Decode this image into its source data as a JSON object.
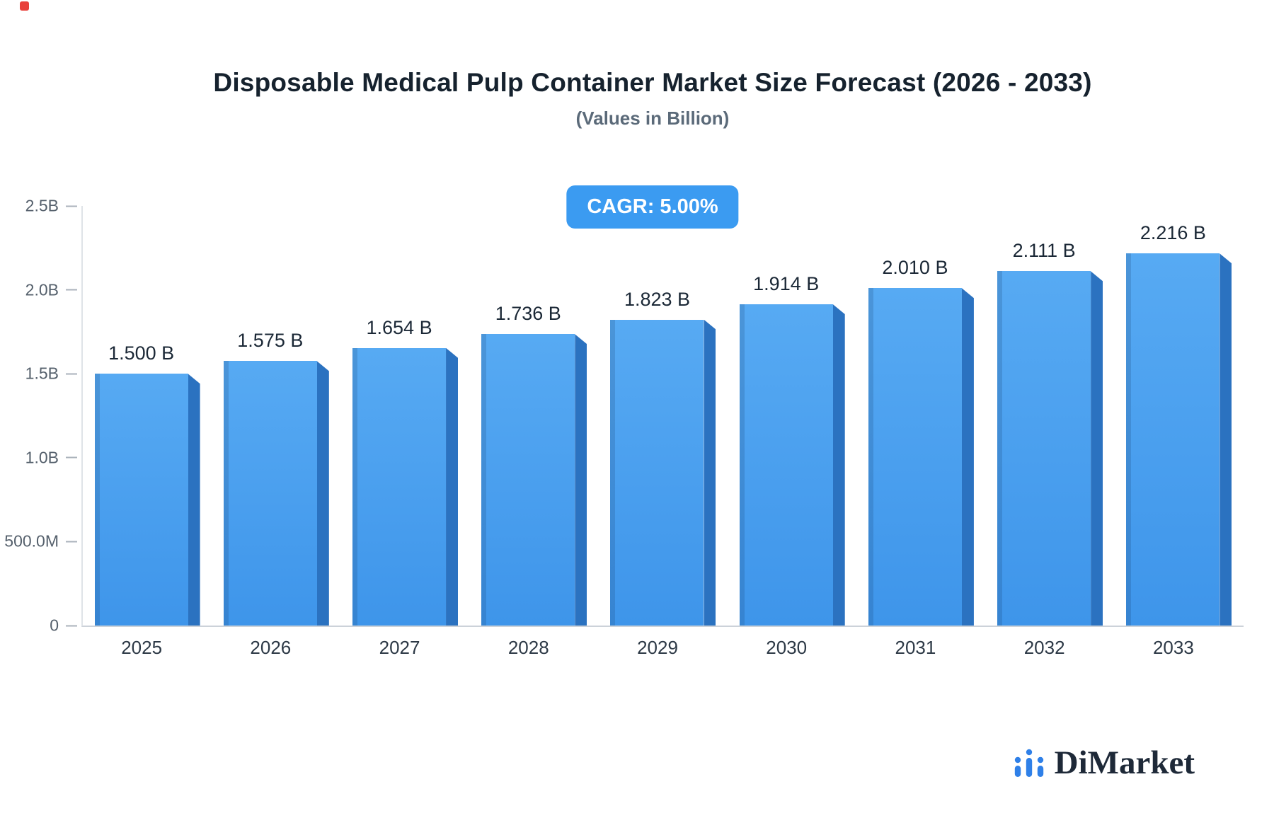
{
  "page": {
    "title": "Disposable Medical Pulp Container Market Size Forecast (2026 - 2033)",
    "subtitle": "(Values in Billion)",
    "cagr_badge": "CAGR: 5.00%"
  },
  "logo": {
    "name": "DiMarket",
    "icon": "bar-chart-icon"
  },
  "chart_data": {
    "type": "bar",
    "title": "Disposable Medical Pulp Container Market Size Forecast (2026 - 2033)",
    "subtitle": "(Values in Billion)",
    "cagr_label": "CAGR: 5.00%",
    "cagr_percent": 5.0,
    "unit": "Billion",
    "categories": [
      "2025",
      "2026",
      "2027",
      "2028",
      "2029",
      "2030",
      "2031",
      "2032",
      "2033"
    ],
    "values": [
      1.5,
      1.575,
      1.654,
      1.736,
      1.823,
      1.914,
      2.01,
      2.111,
      2.216
    ],
    "value_labels": [
      "1.500 B",
      "1.575 B",
      "1.654 B",
      "1.736 B",
      "1.823 B",
      "1.914 B",
      "2.010 B",
      "2.111 B",
      "2.216 B"
    ],
    "xlabel": "",
    "ylabel": "",
    "ylim": [
      0,
      2.5
    ],
    "yticks": [
      {
        "value": 0.0,
        "label": "0"
      },
      {
        "value": 0.5,
        "label": "500.0M"
      },
      {
        "value": 1.0,
        "label": "1.0B"
      },
      {
        "value": 1.5,
        "label": "1.5B"
      },
      {
        "value": 2.0,
        "label": "2.0B"
      },
      {
        "value": 2.5,
        "label": "2.5B"
      }
    ],
    "grid": false,
    "legend": false,
    "colors": {
      "bar_top": "#57aaf3",
      "bar_bottom": "#3e95ea",
      "bar_side": "#2b72c0",
      "badge_bg": "#3b9bf1",
      "accent": "#2f80e8"
    }
  }
}
